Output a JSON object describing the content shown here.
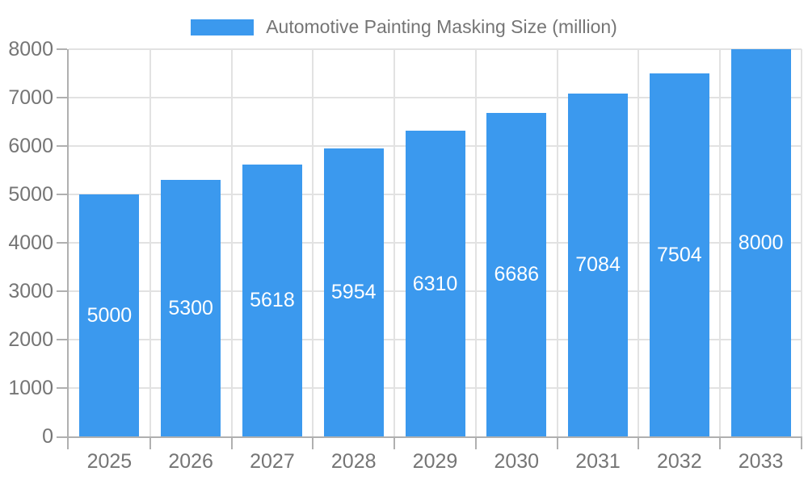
{
  "legend": {
    "label": "Automotive Painting Masking Size (million)"
  },
  "chart_data": {
    "type": "bar",
    "title": "Automotive Painting Masking Size (million)",
    "categories": [
      "2025",
      "2026",
      "2027",
      "2028",
      "2029",
      "2030",
      "2031",
      "2032",
      "2033"
    ],
    "series": [
      {
        "name": "Automotive Painting Masking Size (million)",
        "values": [
          5000,
          5300,
          5618,
          5954,
          6310,
          6686,
          7084,
          7504,
          8000
        ]
      }
    ],
    "bar_value_labels": [
      "5000",
      "5300",
      "5618",
      "5954",
      "6310",
      "6686",
      "7084",
      "7504",
      "8000"
    ],
    "xlabel": "",
    "ylabel": "",
    "ylim": [
      0,
      8000
    ],
    "ytick_step": 1000,
    "ytick_labels": [
      "0",
      "1000",
      "2000",
      "3000",
      "4000",
      "5000",
      "6000",
      "7000",
      "8000"
    ],
    "grid": true,
    "legend_position": "top"
  },
  "colors": {
    "bar": "#3B99EE",
    "grid": "#E2E2E2",
    "axis": "#B0B0B0",
    "text": "#757575",
    "bar_label": "#FFFFFF",
    "background": "#FFFFFF"
  }
}
